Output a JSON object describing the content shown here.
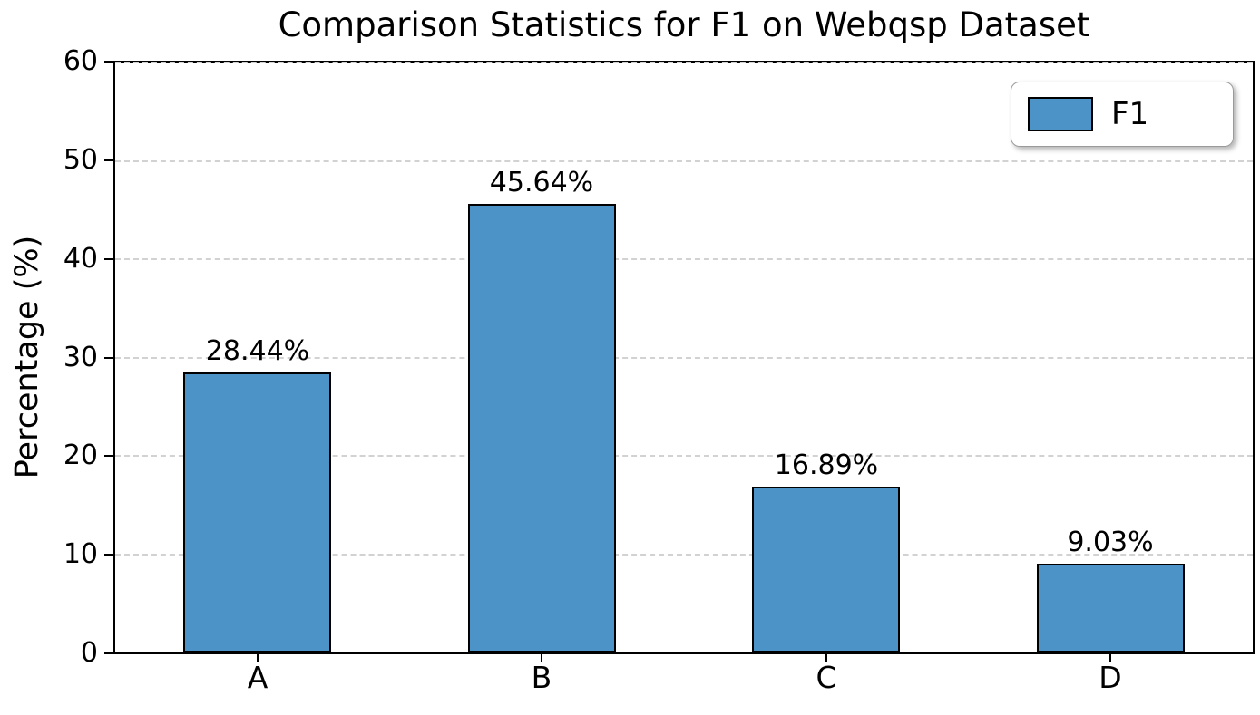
{
  "chart_data": {
    "type": "bar",
    "title": "Comparison Statistics for F1 on Webqsp Dataset",
    "xlabel": "",
    "ylabel": "Percentage (%)",
    "categories": [
      "A",
      "B",
      "C",
      "D"
    ],
    "series": [
      {
        "name": "F1",
        "values": [
          28.44,
          45.64,
          16.89,
          9.03
        ]
      }
    ],
    "value_labels": [
      "28.44%",
      "45.64%",
      "16.89%",
      "9.03%"
    ],
    "ylim": [
      0,
      60
    ],
    "yticks": [
      0,
      10,
      20,
      30,
      40,
      50,
      60
    ],
    "grid": "horizontal-dashed",
    "legend": {
      "position": "upper right",
      "entries": [
        "F1"
      ]
    },
    "colors": {
      "bar_fill": "#4c94c8",
      "bar_edge": "#000000",
      "gridline": "#d2d2d2",
      "axis": "#000000"
    }
  }
}
